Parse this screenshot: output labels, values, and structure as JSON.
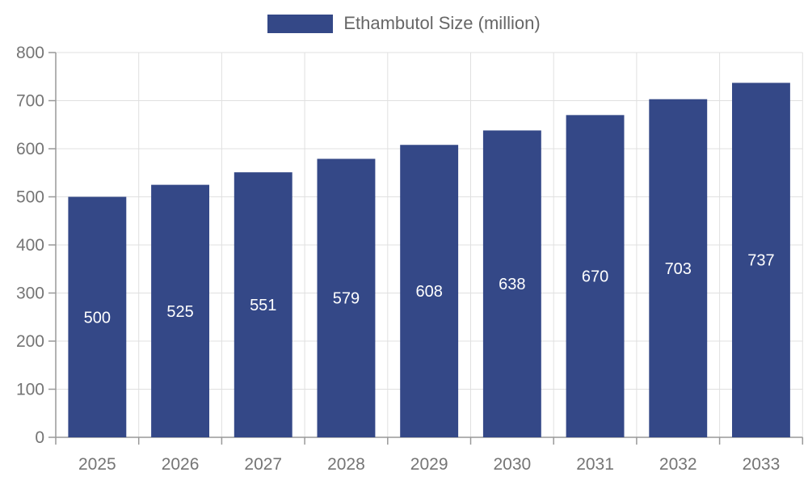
{
  "legend": {
    "label": "Ethambutol Size (million)"
  },
  "chart_data": {
    "type": "bar",
    "title": "",
    "xlabel": "",
    "ylabel": "",
    "categories": [
      "2025",
      "2026",
      "2027",
      "2028",
      "2029",
      "2030",
      "2031",
      "2032",
      "2033"
    ],
    "values": [
      500,
      525,
      551,
      579,
      608,
      638,
      670,
      703,
      737
    ],
    "series_name": "Ethambutol Size (million)",
    "ylim": [
      0,
      800
    ],
    "ytick_interval": 100,
    "yticks": [
      0,
      100,
      200,
      300,
      400,
      500,
      600,
      700,
      800
    ],
    "grid": true,
    "legend_position": "top-center",
    "colors": {
      "bar": "#344887",
      "bar_value_label": "#ffffff",
      "tick_label": "#757575",
      "legend_text": "#666666",
      "gridline": "#e0e0e0",
      "axis": "#999999"
    }
  }
}
